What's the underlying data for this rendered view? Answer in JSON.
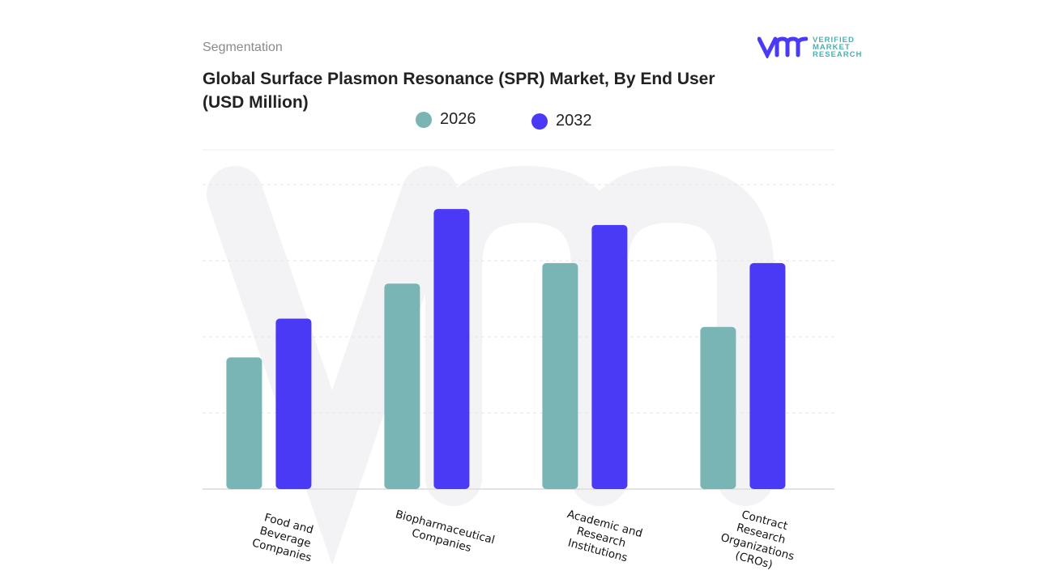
{
  "header": {
    "section": "Segmentation",
    "title": "Global Surface Plasmon Resonance (SPR) Market, By End User (USD Million)"
  },
  "logo": {
    "text": [
      "VERIFIED",
      "MARKET",
      "RESEARCH"
    ]
  },
  "colors": {
    "2026": "#7ab5b5",
    "2032": "#4b3af5"
  },
  "chart_data": {
    "type": "bar",
    "title": "Global Surface Plasmon Resonance (SPR) Market, By End User (USD Million)",
    "categories": [
      "Food and\nBeverage\nCompanies",
      "Biopharmaceutical\nCompanies",
      "Academic and\nResearch\nInstitutions",
      "Contract\nResearch\nOrganizations\n(CROs)"
    ],
    "series": [
      {
        "name": "2026",
        "values": [
          1.73,
          2.7,
          2.97,
          2.13
        ]
      },
      {
        "name": "2032",
        "values": [
          2.24,
          3.68,
          3.47,
          2.97
        ]
      }
    ],
    "ylim": [
      0,
      4
    ],
    "grid": true,
    "y_tick_labels_shown": false,
    "legend": "top-center"
  }
}
